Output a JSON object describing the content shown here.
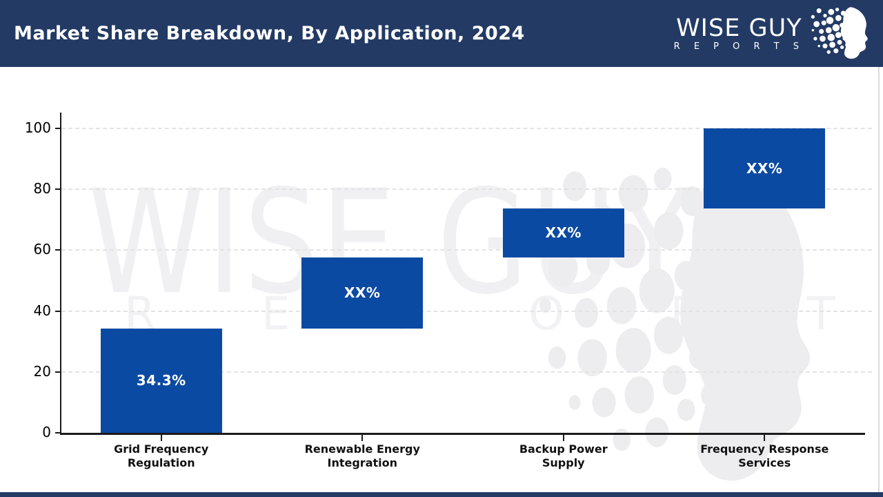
{
  "header": {
    "title": "Market Share Breakdown, By Application, 2024",
    "logo": {
      "line1": "WISE GUY",
      "line2": "R E P O R T S"
    }
  },
  "watermark": {
    "line1": "WISE GUY",
    "line2": "R E P O R T S"
  },
  "chart_data": {
    "type": "bar",
    "subtype": "waterfall",
    "title": "Market Share Breakdown, By Application, 2024",
    "categories": [
      "Grid Frequency Regulation",
      "Renewable Energy Integration",
      "Backup Power Supply",
      "Frequency Response Services"
    ],
    "category_lines": [
      [
        "Grid Frequency",
        "Regulation"
      ],
      [
        "Renewable Energy",
        "Integration"
      ],
      [
        "Backup Power",
        "Supply"
      ],
      [
        "Frequency Response",
        "Services"
      ]
    ],
    "segments": [
      {
        "start": 0,
        "end": 34.3,
        "label": "34.3%"
      },
      {
        "start": 34.3,
        "end": 57.6,
        "label": "XX%"
      },
      {
        "start": 57.6,
        "end": 73.7,
        "label": "XX%"
      },
      {
        "start": 73.7,
        "end": 100,
        "label": "XX%"
      }
    ],
    "ylim": [
      0,
      100
    ],
    "yticks": [
      0,
      20,
      40,
      60,
      80,
      100
    ],
    "xlabel": "",
    "ylabel": "",
    "legend": "none",
    "grid": "horizontal-dashed"
  },
  "colors": {
    "header_bg": "#223A64",
    "footer_bg": "#223A64",
    "bar": "#0B4AA2",
    "bar_label": "#ffffff",
    "grid_line": "#e3e3e3",
    "axis": "#1a1a1a",
    "watermark": "#f0f0f2"
  }
}
